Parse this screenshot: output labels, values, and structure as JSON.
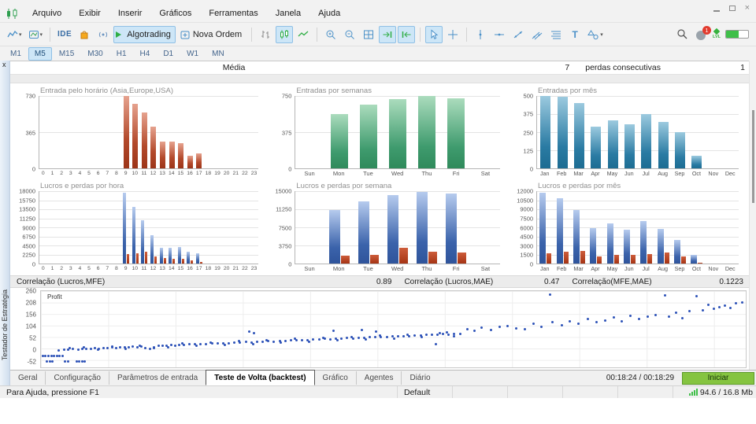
{
  "menu": {
    "items": [
      "Arquivo",
      "Exibir",
      "Inserir",
      "Gráficos",
      "Ferramentas",
      "Janela",
      "Ajuda"
    ]
  },
  "toolbar": {
    "ide_label": "IDE",
    "algotrading_label": "Algotrading",
    "nova_ordem_label": "Nova Ordem",
    "text_tool": "T"
  },
  "notifications": {
    "badge": "1",
    "lvl": "LVL"
  },
  "timeframes": {
    "items": [
      "M1",
      "M5",
      "M15",
      "M30",
      "H1",
      "H4",
      "D1",
      "W1",
      "MN"
    ],
    "selected": "M5"
  },
  "tester_tab": "Testador de Estratégia",
  "stats_row": {
    "col1": "Média",
    "col2": "7",
    "col3": "perdas consecutivas",
    "col4": "1"
  },
  "correlations": [
    {
      "label": "Correlação (Lucros,MFE)",
      "value": "0.89"
    },
    {
      "label": "Correlação (Lucros,MAE)",
      "value": "0.47"
    },
    {
      "label": "Correlação(MFE,MAE)",
      "value": "0.1223"
    }
  ],
  "tabs": {
    "items": [
      "Geral",
      "Configuração",
      "Parâmetros de entrada",
      "Teste de Volta (backtest)",
      "Gráfico",
      "Agentes",
      "Diário"
    ],
    "active": "Teste de Volta (backtest)"
  },
  "runbar": {
    "time": "00:18:24 / 00:18:29",
    "start_label": "Iniciar"
  },
  "statusbar": {
    "help": "Para Ajuda, pressione F1",
    "profile": "Default",
    "traffic": "94.6 / 16.8 Mb"
  },
  "colors": {
    "accent_blue": "#cde6f7",
    "profit_bar": "#2f549b",
    "loss_bar": "#a53414",
    "entries_red": "#9c3418",
    "entries_green": "#2f8a5b",
    "entries_teal": "#1d6c92",
    "start_button": "#85c440",
    "scatter_dot": "#2d52b8"
  },
  "chart_data": [
    {
      "type": "bar",
      "title": "Entrada pelo horário (Asia,Europe,USA)",
      "ymax": 730,
      "yticks": [
        730,
        365,
        0
      ],
      "categories": [
        "0",
        "1",
        "2",
        "3",
        "4",
        "5",
        "6",
        "7",
        "8",
        "9",
        "10",
        "11",
        "12",
        "13",
        "14",
        "15",
        "16",
        "17",
        "18",
        "19",
        "20",
        "21",
        "22",
        "23"
      ],
      "values": [
        0,
        0,
        0,
        0,
        0,
        0,
        0,
        0,
        0,
        730,
        650,
        560,
        420,
        272,
        268,
        252,
        130,
        152,
        0,
        0,
        0,
        0,
        0,
        0
      ],
      "colors": [
        "red"
      ],
      "barws": [
        "7px"
      ],
      "xfs": "6.8px"
    },
    {
      "type": "bar",
      "title": "Entradas por semanas",
      "ymax": 750,
      "yticks": [
        750,
        375,
        0
      ],
      "categories": [
        "Sun",
        "Mon",
        "Tue",
        "Wed",
        "Thu",
        "Fri",
        "Sat"
      ],
      "values": [
        0,
        560,
        660,
        718,
        750,
        722,
        0
      ],
      "colors": [
        "green"
      ],
      "barws": [
        "22px"
      ],
      "xfs": "7.5px"
    },
    {
      "type": "bar",
      "title": "Entradas por mês",
      "ymax": 500,
      "yticks": [
        500,
        375,
        250,
        125,
        0
      ],
      "categories": [
        "Jan",
        "Feb",
        "Mar",
        "Apr",
        "May",
        "Jun",
        "Jul",
        "Aug",
        "Sep",
        "Oct",
        "Nov",
        "Dec"
      ],
      "values": [
        500,
        492,
        450,
        287,
        332,
        305,
        375,
        320,
        252,
        85,
        0,
        0
      ],
      "colors": [
        "teal"
      ],
      "barws": [
        "13px"
      ],
      "xfs": "7.2px"
    },
    {
      "type": "grouped",
      "title": "Lucros e perdas por hora",
      "ymax": 18000,
      "yticks": [
        18000,
        15750,
        13500,
        11250,
        9000,
        6750,
        4500,
        2250,
        0
      ],
      "categories": [
        "0",
        "1",
        "2",
        "3",
        "4",
        "5",
        "6",
        "7",
        "8",
        "9",
        "10",
        "11",
        "12",
        "13",
        "14",
        "15",
        "16",
        "17",
        "18",
        "19",
        "20",
        "21",
        "22",
        "23"
      ],
      "series": [
        {
          "name": "Lucros",
          "values": [
            0,
            0,
            0,
            0,
            0,
            0,
            0,
            0,
            0,
            17600,
            14100,
            10800,
            7100,
            3900,
            3900,
            4200,
            3000,
            2600,
            0,
            0,
            0,
            0,
            0,
            0
          ]
        },
        {
          "name": "Perdas",
          "values": [
            0,
            0,
            0,
            0,
            0,
            0,
            0,
            0,
            0,
            2300,
            2600,
            3000,
            1800,
            1300,
            1100,
            1100,
            700,
            350,
            0,
            0,
            0,
            0,
            0,
            0
          ]
        }
      ],
      "colors": [
        "blue",
        "loss"
      ],
      "barws": [
        "4px",
        "3px"
      ],
      "xfs": "6.8px"
    },
    {
      "type": "grouped",
      "title": "Lucros e perdas por semana",
      "ymax": 15000,
      "yticks": [
        15000,
        11250,
        7500,
        3750,
        0
      ],
      "categories": [
        "Sun",
        "Mon",
        "Tue",
        "Wed",
        "Thu",
        "Fri",
        "Sat"
      ],
      "series": [
        {
          "name": "Lucros",
          "values": [
            0,
            11100,
            12900,
            14200,
            14900,
            14500,
            0
          ]
        },
        {
          "name": "Perdas",
          "values": [
            0,
            1700,
            1800,
            3300,
            2400,
            2300,
            0
          ]
        }
      ],
      "colors": [
        "blue",
        "loss"
      ],
      "barws": [
        "14px",
        "11px"
      ],
      "xfs": "7.5px"
    },
    {
      "type": "grouped",
      "title": "Lucros e perdas por mês",
      "ymax": 12000,
      "yticks": [
        12000,
        10500,
        9000,
        7500,
        6000,
        4500,
        3000,
        1500,
        0
      ],
      "categories": [
        "Jan",
        "Feb",
        "Mar",
        "Apr",
        "May",
        "Jun",
        "Jul",
        "Aug",
        "Sep",
        "Oct",
        "Nov",
        "Dec"
      ],
      "series": [
        {
          "name": "Lucros",
          "values": [
            11700,
            10800,
            8900,
            5900,
            6700,
            5600,
            7100,
            5800,
            3900,
            1450,
            0,
            0
          ]
        },
        {
          "name": "Perdas",
          "values": [
            1700,
            1900,
            2100,
            1200,
            1400,
            1450,
            1550,
            1800,
            1200,
            150,
            0,
            0
          ]
        }
      ],
      "colors": [
        "blue",
        "loss"
      ],
      "barws": [
        "8px",
        "6px"
      ],
      "xfs": "7.2px"
    },
    {
      "type": "scatter",
      "label": "Profit",
      "ymax": 265,
      "ymin": -80,
      "xmax": 1000,
      "yticks": [
        260,
        208,
        156,
        104,
        52,
        0,
        -52
      ],
      "points": [
        [
          2,
          -26
        ],
        [
          6,
          -26
        ],
        [
          10,
          -26
        ],
        [
          14,
          -26
        ],
        [
          18,
          -26
        ],
        [
          22,
          -26
        ],
        [
          26,
          -26
        ],
        [
          30,
          -26
        ],
        [
          8,
          -52
        ],
        [
          12,
          -52
        ],
        [
          16,
          -52
        ],
        [
          34,
          -52
        ],
        [
          38,
          -52
        ],
        [
          50,
          -52
        ],
        [
          54,
          -52
        ],
        [
          58,
          -52
        ],
        [
          62,
          -52
        ],
        [
          25,
          0
        ],
        [
          32,
          2
        ],
        [
          38,
          1
        ],
        [
          45,
          4
        ],
        [
          52,
          3
        ],
        [
          58,
          5
        ],
        [
          64,
          6
        ],
        [
          70,
          5
        ],
        [
          76,
          8
        ],
        [
          82,
          7
        ],
        [
          88,
          9
        ],
        [
          94,
          8
        ],
        [
          100,
          11
        ],
        [
          106,
          10
        ],
        [
          112,
          13
        ],
        [
          118,
          12
        ],
        [
          124,
          14
        ],
        [
          130,
          15
        ],
        [
          136,
          13
        ],
        [
          142,
          16
        ],
        [
          148,
          8
        ],
        [
          154,
          6
        ],
        [
          160,
          9
        ],
        [
          166,
          18
        ],
        [
          172,
          20
        ],
        [
          178,
          19
        ],
        [
          184,
          22
        ],
        [
          190,
          21
        ],
        [
          196,
          24
        ],
        [
          202,
          23
        ],
        [
          210,
          26
        ],
        [
          218,
          25
        ],
        [
          226,
          28
        ],
        [
          234,
          27
        ],
        [
          242,
          30
        ],
        [
          250,
          29
        ],
        [
          258,
          32
        ],
        [
          266,
          31
        ],
        [
          274,
          34
        ],
        [
          282,
          33
        ],
        [
          290,
          36
        ],
        [
          298,
          35
        ],
        [
          306,
          38
        ],
        [
          314,
          37
        ],
        [
          322,
          40
        ],
        [
          330,
          39
        ],
        [
          338,
          42
        ],
        [
          346,
          41
        ],
        [
          354,
          44
        ],
        [
          362,
          43
        ],
        [
          370,
          46
        ],
        [
          378,
          45
        ],
        [
          386,
          48
        ],
        [
          394,
          47
        ],
        [
          402,
          50
        ],
        [
          410,
          49
        ],
        [
          418,
          52
        ],
        [
          426,
          51
        ],
        [
          434,
          54
        ],
        [
          442,
          53
        ],
        [
          450,
          56
        ],
        [
          458,
          55
        ],
        [
          466,
          58
        ],
        [
          474,
          57
        ],
        [
          482,
          60
        ],
        [
          490,
          59
        ],
        [
          498,
          62
        ],
        [
          506,
          61
        ],
        [
          514,
          64
        ],
        [
          522,
          63
        ],
        [
          530,
          66
        ],
        [
          538,
          65
        ],
        [
          546,
          68
        ],
        [
          554,
          70
        ],
        [
          562,
          69
        ],
        [
          570,
          72
        ],
        [
          578,
          71
        ],
        [
          586,
          74
        ],
        [
          594,
          73
        ],
        [
          40,
          9
        ],
        [
          60,
          12
        ],
        [
          80,
          3
        ],
        [
          100,
          17
        ],
        [
          120,
          7
        ],
        [
          140,
          21
        ],
        [
          160,
          14
        ],
        [
          180,
          12
        ],
        [
          200,
          29
        ],
        [
          220,
          18
        ],
        [
          240,
          35
        ],
        [
          260,
          24
        ],
        [
          280,
          40
        ],
        [
          300,
          28
        ],
        [
          320,
          46
        ],
        [
          340,
          33
        ],
        [
          360,
          50
        ],
        [
          380,
          38
        ],
        [
          400,
          56
        ],
        [
          420,
          43
        ],
        [
          440,
          60
        ],
        [
          460,
          48
        ],
        [
          480,
          66
        ],
        [
          500,
          53
        ],
        [
          520,
          70
        ],
        [
          540,
          58
        ],
        [
          560,
          26
        ],
        [
          565,
          75
        ],
        [
          575,
          80
        ],
        [
          585,
          64
        ],
        [
          295,
          84
        ],
        [
          302,
          76
        ],
        [
          415,
          88
        ],
        [
          455,
          92
        ],
        [
          475,
          83
        ],
        [
          605,
          95
        ],
        [
          615,
          88
        ],
        [
          625,
          100
        ],
        [
          638,
          92
        ],
        [
          650,
          104
        ],
        [
          662,
          110
        ],
        [
          674,
          98
        ],
        [
          686,
          96
        ],
        [
          698,
          118
        ],
        [
          710,
          104
        ],
        [
          722,
          250
        ],
        [
          725,
          125
        ],
        [
          738,
          112
        ],
        [
          750,
          130
        ],
        [
          762,
          120
        ],
        [
          775,
          140
        ],
        [
          788,
          126
        ],
        [
          800,
          135
        ],
        [
          812,
          148
        ],
        [
          824,
          130
        ],
        [
          836,
          155
        ],
        [
          848,
          142
        ],
        [
          860,
          150
        ],
        [
          872,
          160
        ],
        [
          885,
          247
        ],
        [
          890,
          152
        ],
        [
          900,
          168
        ],
        [
          910,
          145
        ],
        [
          920,
          175
        ],
        [
          930,
          244
        ],
        [
          938,
          180
        ],
        [
          946,
          205
        ],
        [
          954,
          185
        ],
        [
          962,
          195
        ],
        [
          970,
          200
        ],
        [
          978,
          190
        ],
        [
          986,
          210
        ],
        [
          994,
          215
        ]
      ]
    }
  ]
}
